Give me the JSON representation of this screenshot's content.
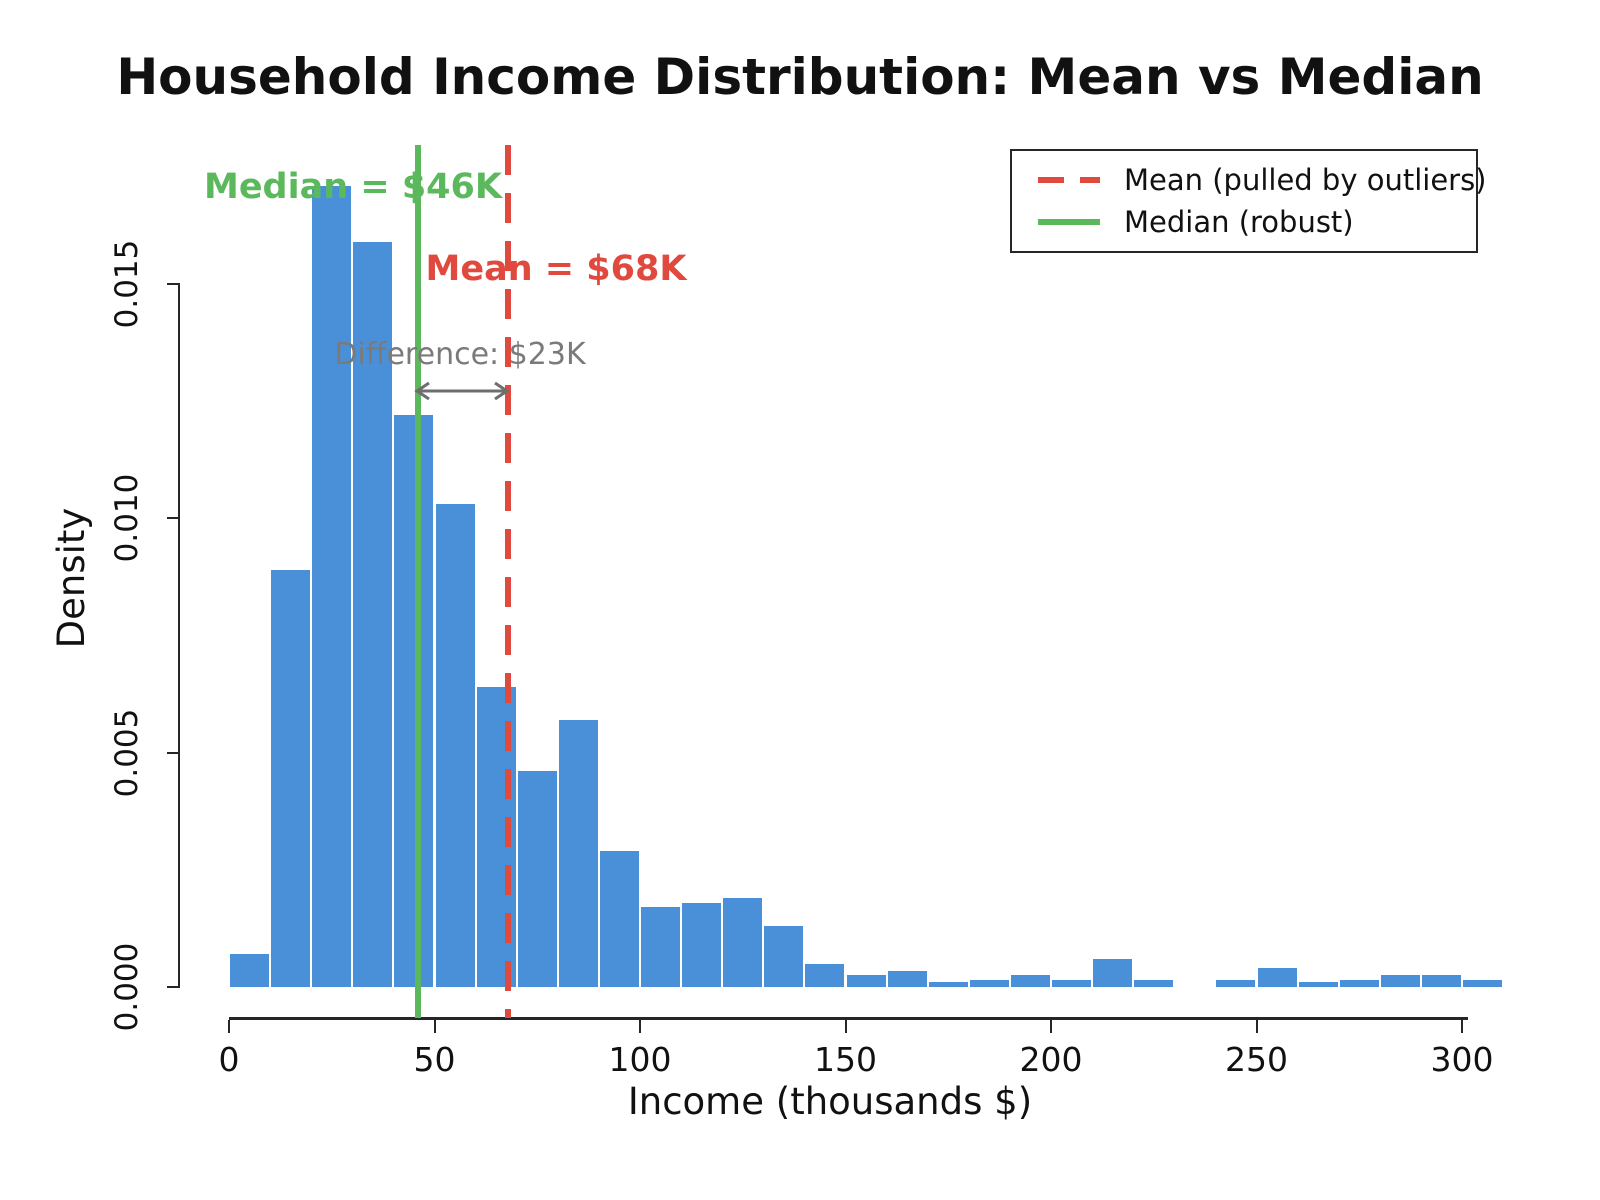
{
  "title": "Household Income Distribution: Mean vs Median",
  "annotations": {
    "median_label": "Median = $46K",
    "mean_label": "Mean = $68K",
    "difference_label": "Difference: $23K"
  },
  "legend": {
    "items": [
      {
        "label": "Mean (pulled by outliers)",
        "style": "dashed",
        "color": "#e0493e"
      },
      {
        "label": "Median (robust)",
        "style": "solid",
        "color": "#5cb85c"
      }
    ]
  },
  "colors": {
    "bar_fill": "#4a90d9",
    "median_green": "#5cb85c",
    "mean_red": "#e0493e",
    "difference_gray": "#7a7a7a",
    "axis_black": "#262626"
  },
  "chart_data": {
    "type": "bar",
    "subtype": "histogram",
    "title": "Household Income Distribution: Mean vs Median",
    "xlabel": "Income (thousands $)",
    "ylabel": "Density",
    "bin_start": 0,
    "bin_width": 10,
    "densities": [
      0.0007,
      0.0089,
      0.0171,
      0.0159,
      0.0122,
      0.0103,
      0.0064,
      0.0046,
      0.0057,
      0.0029,
      0.0017,
      0.0018,
      0.0019,
      0.0013,
      0.0005,
      0.00025,
      0.00035,
      0.0001,
      0.00015,
      0.00025,
      0.00015,
      0.0006,
      0.00015,
      0,
      0.00015,
      0.0004,
      0.0001,
      0.00015,
      0.00025,
      0.00025,
      0.00015
    ],
    "x_ticks": [
      0,
      50,
      100,
      150,
      200,
      250,
      300
    ],
    "y_ticks": [
      "0.000",
      "0.005",
      "0.010",
      "0.015"
    ],
    "xlim": [
      0,
      310
    ],
    "ylim": [
      0,
      0.015
    ],
    "median": 46,
    "mean": 68,
    "difference": 23,
    "grid": false,
    "legend_position": "upper right"
  }
}
